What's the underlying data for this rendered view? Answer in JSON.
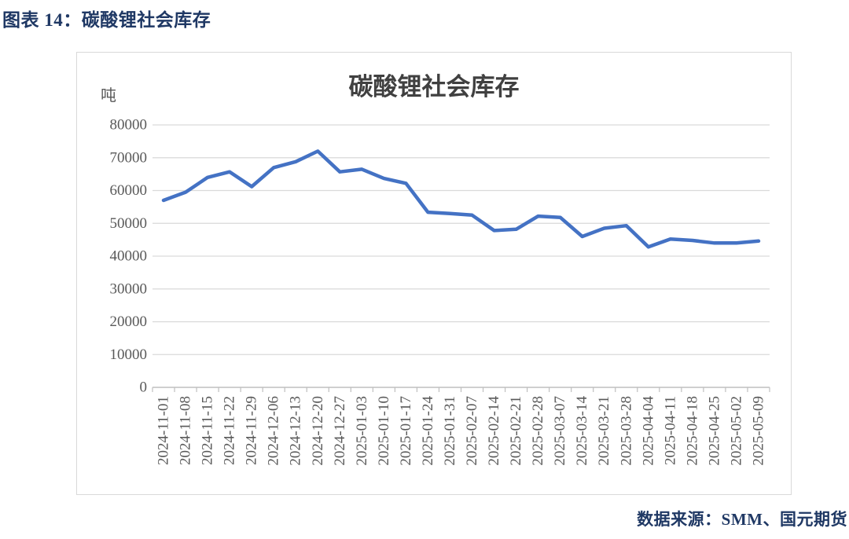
{
  "figure_caption": "图表 14：碳酸锂社会库存",
  "data_source": "数据来源：SMM、国元期货",
  "colors": {
    "accent_blue": "#1F3864",
    "line": "#4472C4",
    "gridline": "#D9D9D9",
    "axis_line": "#BFBFBF",
    "axis_text": "#595959",
    "title_text": "#404040",
    "border": "#D9D9D9"
  },
  "chart_data": {
    "type": "line",
    "title": "碳酸锂社会库存",
    "xlabel": "",
    "ylabel": "吨",
    "ylim": [
      0,
      80000
    ],
    "ytick_step": 10000,
    "grid": true,
    "legend_position": "none",
    "x_label_rotation_degrees": 90,
    "categories": [
      "2024-11-01",
      "2024-11-08",
      "2024-11-15",
      "2024-11-22",
      "2024-11-29",
      "2024-12-06",
      "2024-12-13",
      "2024-12-20",
      "2024-12-27",
      "2025-01-03",
      "2025-01-10",
      "2025-01-17",
      "2025-01-24",
      "2025-01-31",
      "2025-02-07",
      "2025-02-14",
      "2025-02-21",
      "2025-02-28",
      "2025-03-07",
      "2025-03-14",
      "2025-03-21",
      "2025-03-28",
      "2025-04-04",
      "2025-04-11",
      "2025-04-18",
      "2025-04-25",
      "2025-05-02",
      "2025-05-09"
    ],
    "series": [
      {
        "name": "碳酸锂社会库存",
        "color": "#4472C4",
        "values": [
          57000,
          59500,
          64000,
          65700,
          61200,
          67000,
          68800,
          72000,
          65700,
          66500,
          63700,
          62200,
          53400,
          53000,
          52500,
          47800,
          48200,
          52200,
          51800,
          46000,
          48500,
          49300,
          42800,
          45200,
          44800,
          44000,
          44000,
          44600
        ]
      }
    ]
  }
}
